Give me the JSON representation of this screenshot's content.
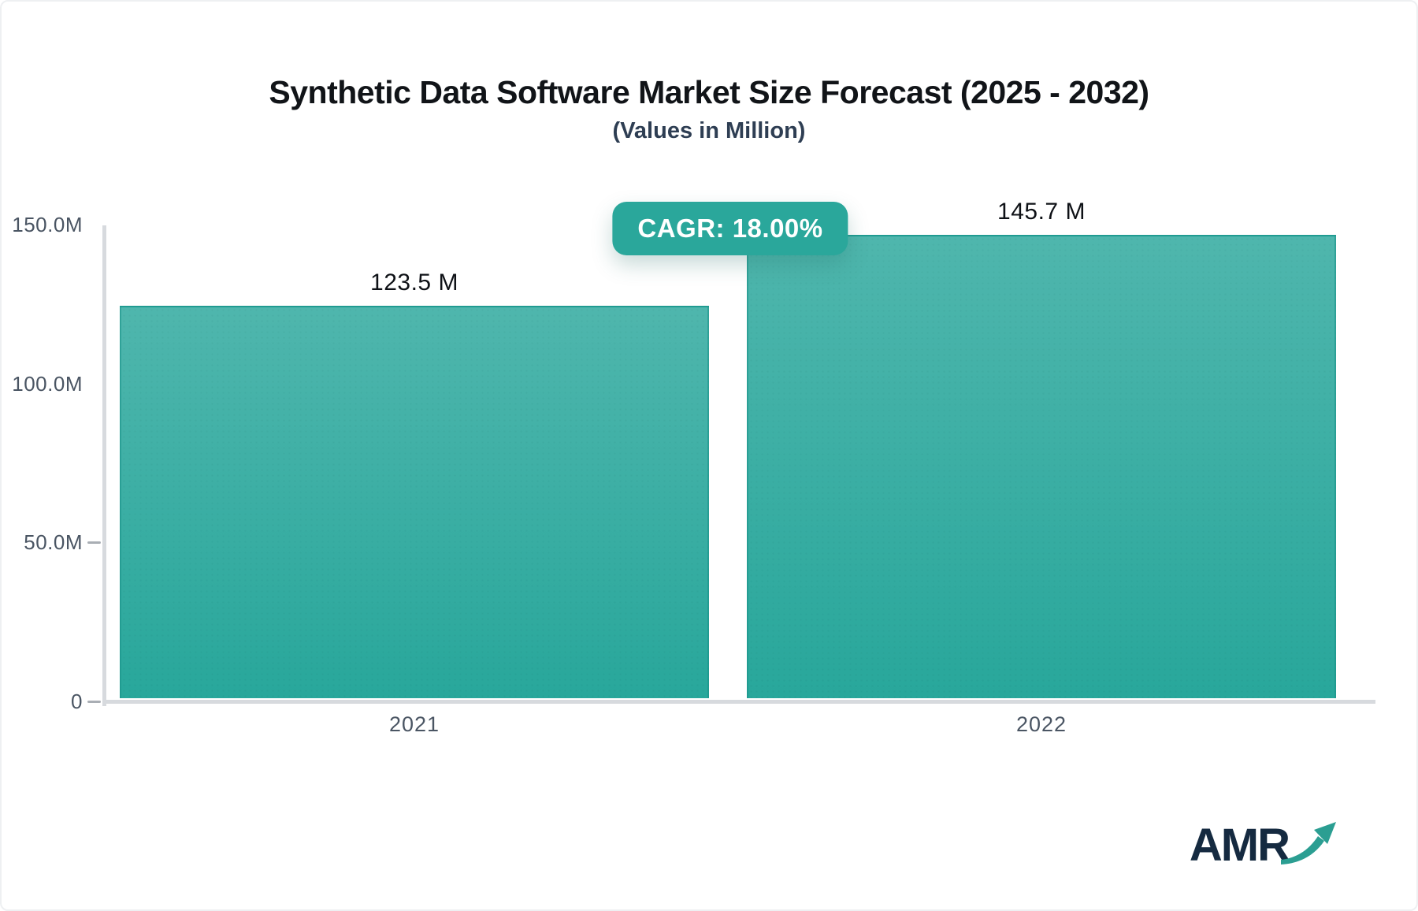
{
  "chart_data": {
    "type": "bar",
    "title": "Synthetic Data Software Market Size Forecast (2025 - 2032)",
    "subtitle": "(Values in Million)",
    "categories": [
      "2021",
      "2022"
    ],
    "values": [
      123.5,
      145.7
    ],
    "value_labels": [
      "123.5 M",
      "145.7 M"
    ],
    "unit": "Million",
    "ylim": [
      0,
      150
    ],
    "yticks": [
      {
        "label": "150.0M",
        "value": 150,
        "mark": false
      },
      {
        "label": "100.0M",
        "value": 100,
        "mark": false
      },
      {
        "label": "50.0M",
        "value": 50,
        "mark": true
      },
      {
        "label": "0",
        "value": 0,
        "mark": true
      }
    ],
    "grid": false,
    "legend": false,
    "annotation": "CAGR: 18.00%"
  },
  "badge": {
    "text": "CAGR: 18.00%"
  },
  "logo": {
    "text": "AMR"
  },
  "colors": {
    "bar_top": "#4FB6AD",
    "bar_bottom": "#28A79B",
    "bar_edge": "#1F948B",
    "badge_bg": "#2AA79B",
    "axis": "#D7DADE",
    "tick": "#A9AEB4",
    "title": "#111418",
    "subtitle": "#2E3E53",
    "axis_label": "#4A5563",
    "value_label": "#0E1116",
    "logo_navy": "#152A40",
    "logo_teal": "#2B9E92"
  }
}
